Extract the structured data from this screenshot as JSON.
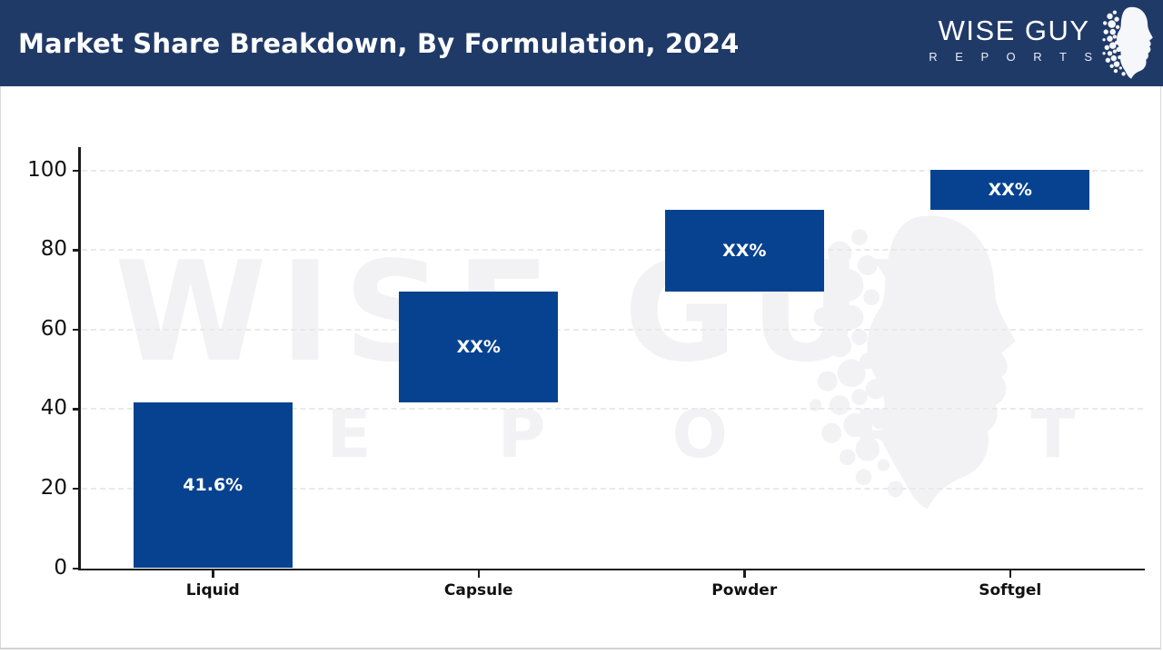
{
  "header": {
    "title": "Market Share Breakdown, By Formulation, 2024",
    "logo": {
      "line1": "WISE GUY",
      "line2": "R E P O R T S"
    }
  },
  "watermark": {
    "line1": "WISE GUY",
    "line2": "R E P O R T S"
  },
  "colors": {
    "header_bg": "#203a68",
    "bar": "#06428f",
    "bar_label": "#ffffff",
    "grid": "#e9e9e9",
    "axis": "#1c1c1c",
    "watermark": "#f2f2f4"
  },
  "chart_data": {
    "type": "bar",
    "subtype": "waterfall",
    "title": "Market Share Breakdown, By Formulation, 2024",
    "categories": [
      "Liquid",
      "Capsule",
      "Powder",
      "Softgel"
    ],
    "segments": [
      {
        "category": "Liquid",
        "start": 0,
        "end": 41.6,
        "label": "41.6%"
      },
      {
        "category": "Capsule",
        "start": 41.6,
        "end": 69.6,
        "label": "XX%"
      },
      {
        "category": "Powder",
        "start": 69.6,
        "end": 90.1,
        "label": "XX%"
      },
      {
        "category": "Softgel",
        "start": 90.1,
        "end": 100.2,
        "label": "XX%"
      }
    ],
    "yticks": [
      0,
      20,
      40,
      60,
      80,
      100
    ],
    "ylim": [
      0,
      105
    ],
    "xlabel": "",
    "ylabel": "",
    "grid": "horizontal-dashed",
    "legend": "none"
  }
}
